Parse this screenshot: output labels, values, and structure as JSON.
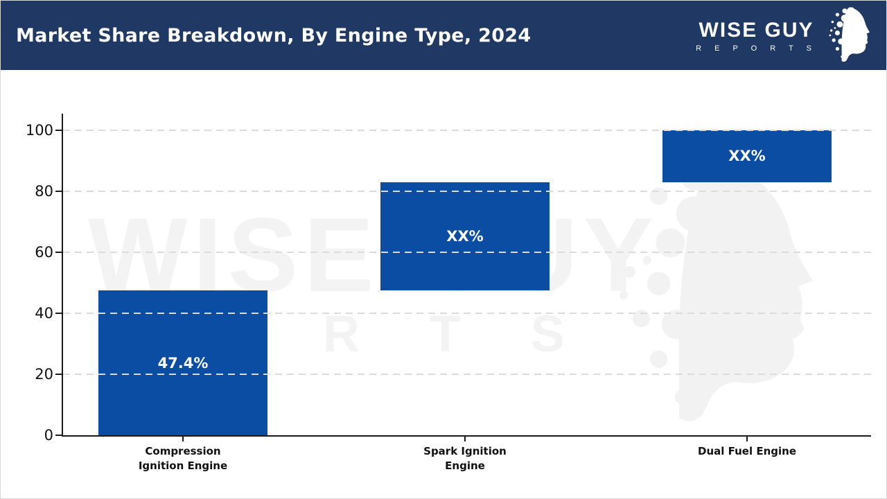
{
  "header": {
    "title": "Market Share Breakdown, By Engine Type, 2024",
    "bg_color": "#203864",
    "logo": {
      "line1": "WISE GUY",
      "line2": "R E P O R T S"
    }
  },
  "watermark": {
    "line1": "WISE GUY",
    "line2": "P O R T S"
  },
  "chart_data": {
    "type": "bar",
    "subtype": "floating-stacked-range",
    "title": "Market Share Breakdown, By Engine Type, 2024",
    "categories": [
      "Compression Ignition Engine",
      "Spark Ignition Engine",
      "Dual Fuel Engine"
    ],
    "category_lines": [
      [
        "Compression",
        "Ignition Engine"
      ],
      [
        "Spark Ignition",
        "Engine"
      ],
      [
        "Dual Fuel Engine"
      ]
    ],
    "segments": [
      {
        "category": "Compression Ignition Engine",
        "start": 0,
        "end": 47.4,
        "label": "47.4%"
      },
      {
        "category": "Spark Ignition Engine",
        "start": 47.4,
        "end": 83,
        "label": "XX%"
      },
      {
        "category": "Dual Fuel Engine",
        "start": 83,
        "end": 100,
        "label": "XX%"
      }
    ],
    "ylabel": "",
    "xlabel": "",
    "ylim": [
      0,
      100
    ],
    "yticks": [
      0,
      20,
      40,
      60,
      80,
      100
    ],
    "grid": "horizontal dashed, drawn over bars",
    "legend": "none",
    "bar_color": "#0b4da2",
    "bar_label_color": "#ffffff"
  }
}
